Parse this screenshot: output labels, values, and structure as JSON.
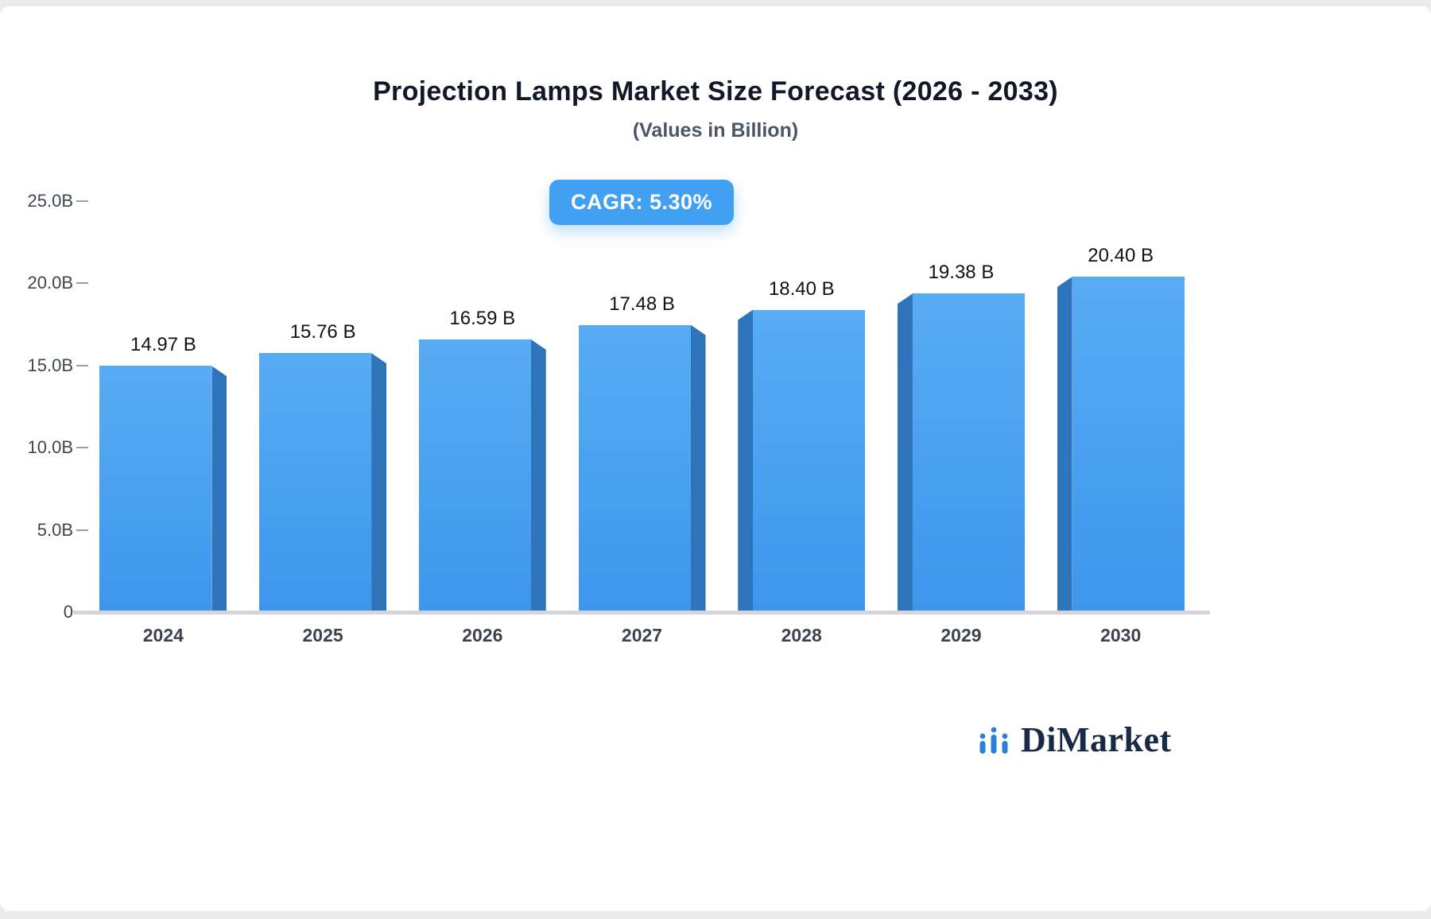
{
  "header": {
    "title": "Projection Lamps Market Size Forecast (2026 - 2033)",
    "subtitle": "(Values in Billion)"
  },
  "badge": {
    "label": "CAGR: 5.30%",
    "bg": "#42A0F2"
  },
  "chart_data": {
    "type": "bar",
    "title": "Projection Lamps Market Size Forecast (2026 - 2033)",
    "subtitle": "(Values in Billion)",
    "categories": [
      "2024",
      "2025",
      "2026",
      "2027",
      "2028",
      "2029",
      "2030"
    ],
    "values": [
      14.97,
      15.76,
      16.59,
      17.48,
      18.4,
      19.38,
      20.4
    ],
    "labels": [
      "14.97 B",
      "15.76 B",
      "16.59 B",
      "17.48 B",
      "18.40 B",
      "19.38 B",
      "20.40 B"
    ],
    "xlabel": "",
    "ylabel": "",
    "ylim": [
      0,
      25
    ],
    "yticks": [
      "0",
      "5.0B",
      "10.0B",
      "15.0B",
      "20.0B",
      "25.0B"
    ],
    "grid": false,
    "legend": "none",
    "bar_color_top": "#58ACF4",
    "bar_color_bottom": "#3E96EC",
    "bar_side_color": "#2E74BA"
  },
  "logo": {
    "text": "DiMarket",
    "icon": "bar-chart-logo-icon",
    "text_color": "#192a47",
    "accent": "#2E7FD9"
  }
}
